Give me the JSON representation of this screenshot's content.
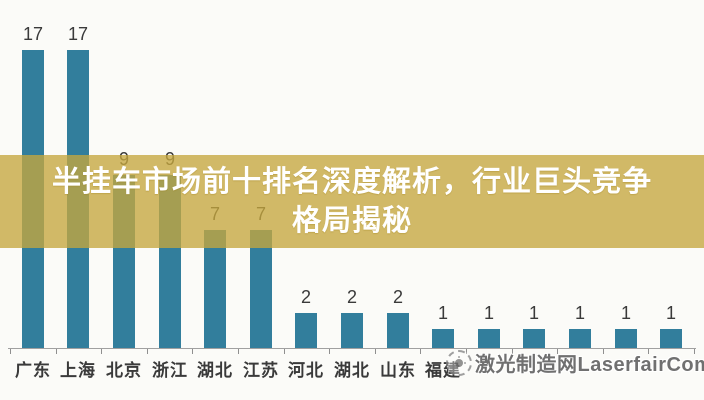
{
  "banner": {
    "line1": "半挂车市场前十排名深度解析，行业巨头竞争",
    "line2": "格局揭秘",
    "bg_color": "rgba(197,166,62,0.78)",
    "text_color": "#ffffff"
  },
  "watermark": {
    "logo": "laser-sun-logo",
    "text": "激光制造网LaserfairCom"
  },
  "chart_data": {
    "type": "bar",
    "categories": [
      "广东",
      "上海",
      "北京",
      "浙江",
      "湖北",
      "江苏",
      "河北",
      "湖北",
      "山东",
      "福建",
      "",
      "",
      "",
      "",
      ""
    ],
    "values": [
      17,
      17,
      9,
      9,
      7,
      7,
      2,
      2,
      2,
      1,
      1,
      1,
      1,
      1,
      1
    ],
    "title": "",
    "xlabel": "",
    "ylabel": "",
    "ylim": [
      0,
      19
    ],
    "grid": false,
    "legend": "none",
    "value_labels_shown": true,
    "bar_color": "#327e9c",
    "value_label_color": "#3a3a3a",
    "category_label_color": "#3a3a3a",
    "axis_color": "#a0a0a0"
  }
}
